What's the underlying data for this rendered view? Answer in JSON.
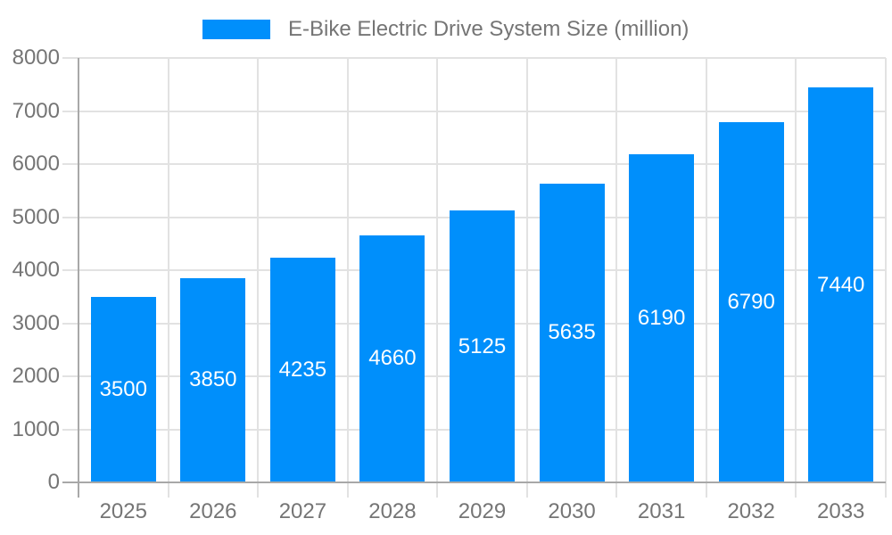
{
  "colors": {
    "bar": "#008FFB",
    "grid": "#e2e2e2",
    "axis": "#a8a8a8",
    "axis_label": "#757575",
    "value_label": "#ffffff"
  },
  "chart_data": {
    "type": "bar",
    "title": "",
    "xlabel": "",
    "ylabel": "",
    "legend_position": "top",
    "grid": "both",
    "categories": [
      "2025",
      "2026",
      "2027",
      "2028",
      "2029",
      "2030",
      "2031",
      "2032",
      "2033"
    ],
    "series": [
      {
        "name": "E-Bike Electric Drive System Size (million)",
        "color": "#008FFB",
        "values": [
          3500,
          3850,
          4235,
          4660,
          5125,
          5635,
          6190,
          6790,
          7440
        ]
      }
    ],
    "data_labels": {
      "show": true,
      "position": "center",
      "color": "#ffffff"
    },
    "ylim": [
      0,
      8000
    ],
    "ytick_step": 1000,
    "yticks": [
      0,
      1000,
      2000,
      3000,
      4000,
      5000,
      6000,
      7000,
      8000
    ]
  }
}
